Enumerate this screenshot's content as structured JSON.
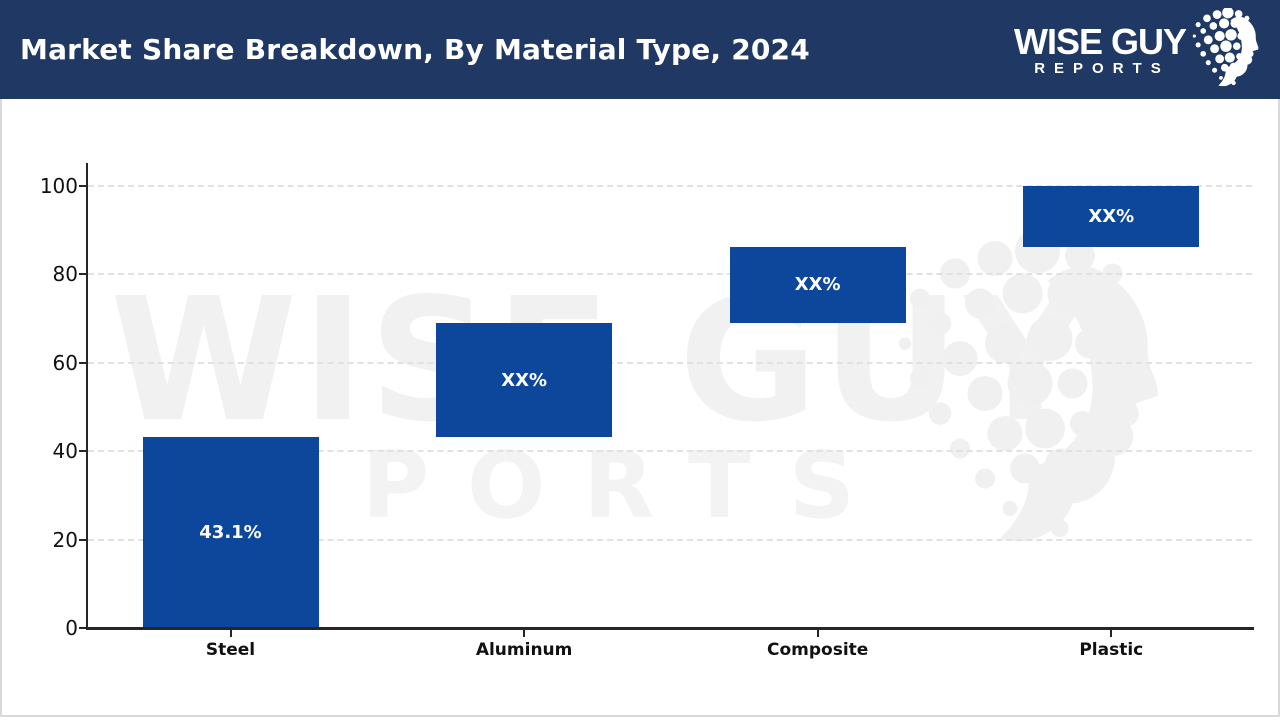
{
  "header": {
    "title": "Market Share Breakdown, By Material Type, 2024",
    "bg_color": "#1f3864",
    "logo": {
      "line1": "WISE GUY",
      "line2": "REPORTS"
    }
  },
  "watermark": {
    "line1": "WISE GUY",
    "line2": "REPORTS"
  },
  "chart_data": {
    "type": "bar",
    "subtype": "floating-waterfall",
    "title": "Market Share Breakdown, By Material Type, 2024",
    "categories": [
      "Steel",
      "Aluminum",
      "Composite",
      "Plastic"
    ],
    "segments": [
      {
        "category": "Steel",
        "start": 0,
        "end": 43.1,
        "label": "43.1%"
      },
      {
        "category": "Aluminum",
        "start": 43.1,
        "end": 69.0,
        "label": "XX%"
      },
      {
        "category": "Composite",
        "start": 69.0,
        "end": 86.2,
        "label": "XX%"
      },
      {
        "category": "Plastic",
        "start": 86.2,
        "end": 100.0,
        "label": "XX%"
      }
    ],
    "visible_value_labels": [
      "43.1%",
      "XX%",
      "XX%",
      "XX%"
    ],
    "ylim": [
      0,
      100
    ],
    "y_ticks": [
      0,
      20,
      40,
      60,
      80,
      100
    ],
    "grid": "horizontal-dashed",
    "grid_color": "#e1e1e1",
    "bar_color": "#0c479c",
    "bar_label_color": "#ffffff",
    "legend": "none"
  }
}
